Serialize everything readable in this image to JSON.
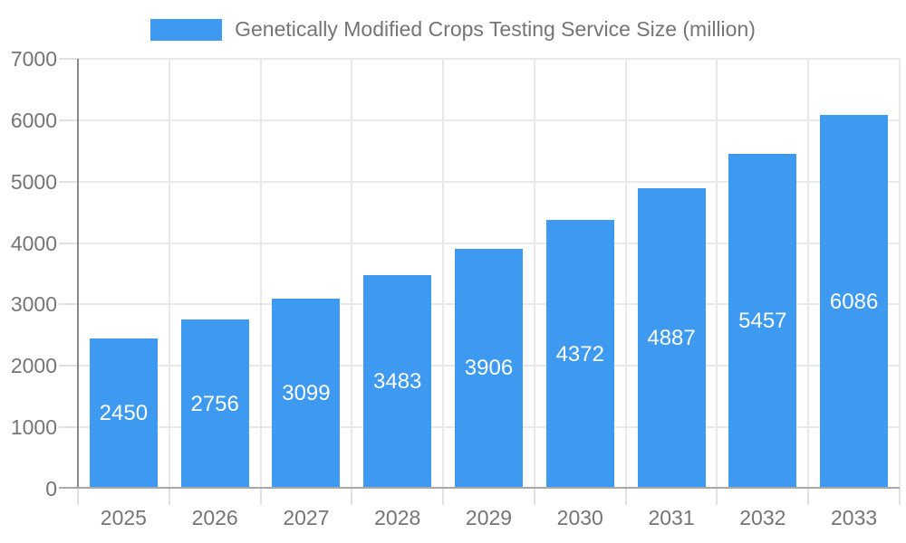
{
  "legend": {
    "label": "Genetically Modified Crops Testing Service Size (million)"
  },
  "colors": {
    "bar": "#3d9af0",
    "grid": "#e9e9e9",
    "tick": "#e0e0e0",
    "axis_line": "#888888",
    "baseline": "#a8a8a8",
    "axis_label_text": "#757575",
    "value_label_text": "#ffffff",
    "background": "#ffffff"
  },
  "chart_data": {
    "type": "bar",
    "title": "Genetically Modified Crops Testing Service Size (million)",
    "categories": [
      "2025",
      "2026",
      "2027",
      "2028",
      "2029",
      "2030",
      "2031",
      "2032",
      "2033"
    ],
    "values": [
      2450,
      2756,
      3099,
      3483,
      3906,
      4372,
      4887,
      5457,
      6086
    ],
    "xlabel": "",
    "ylabel": "",
    "ylim": [
      0,
      7000
    ],
    "yticks": [
      0,
      1000,
      2000,
      3000,
      4000,
      5000,
      6000,
      7000
    ],
    "grid": true,
    "legend_position": "top",
    "value_label_position": "inside-center"
  }
}
